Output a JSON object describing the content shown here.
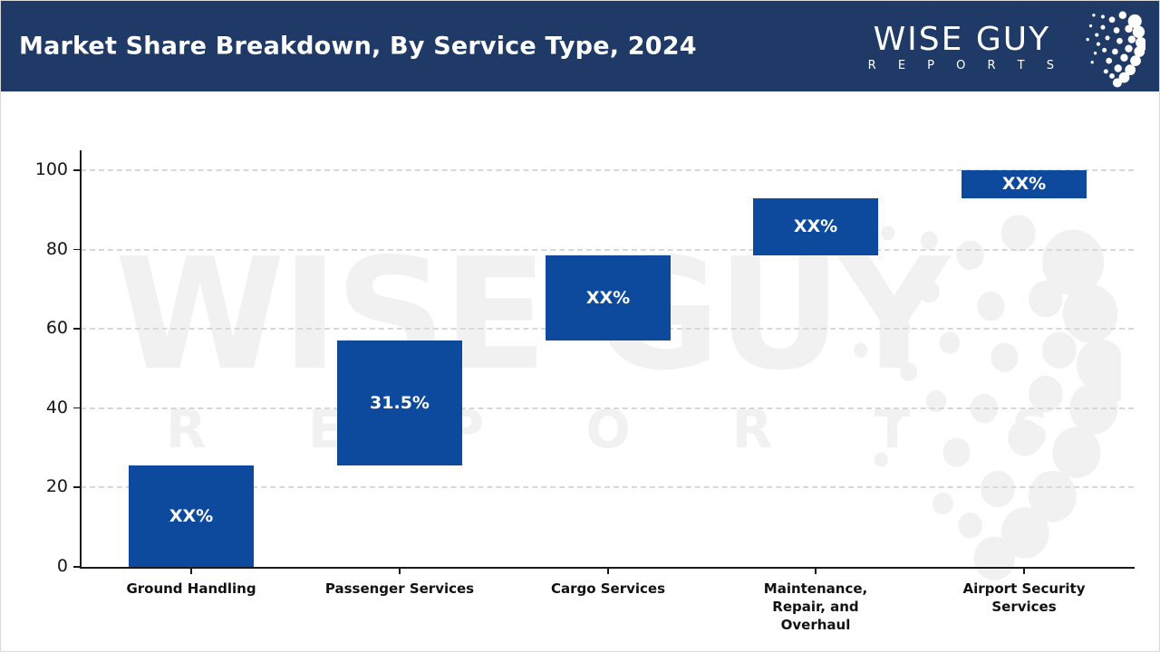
{
  "header": {
    "title": "Market Share Breakdown, By Service Type, 2024",
    "logo": {
      "wordmark": "WISE GUY",
      "subtext": "R E P O R T S"
    }
  },
  "watermark": {
    "wordmark": "WISE GUY",
    "subtext": "R E P O R T S"
  },
  "colors": {
    "header_bg": "#1f3a66",
    "bar": "#0d4a9d",
    "grid": "#d8d8d8",
    "axis": "#1a1a1a",
    "tick_text": "#161616",
    "bar_label_text": "#ffffff",
    "watermark": "#f1f1f1"
  },
  "chart_data": {
    "type": "bar",
    "subtype": "waterfall",
    "title": "Market Share Breakdown, By Service Type, 2024",
    "categories": [
      "Ground Handling",
      "Passenger Services",
      "Cargo Services",
      "Maintenance,\nRepair, and\nOverhaul",
      "Airport Security\nServices"
    ],
    "segments": [
      {
        "category": "Ground Handling",
        "start": 0,
        "end": 25.5,
        "value": 25.5,
        "label": "XX%"
      },
      {
        "category": "Passenger Services",
        "start": 25.5,
        "end": 57,
        "value": 31.5,
        "label": "31.5%"
      },
      {
        "category": "Cargo Services",
        "start": 57,
        "end": 78.5,
        "value": 21.5,
        "label": "XX%"
      },
      {
        "category": "Maintenance, Repair, and Overhaul",
        "start": 78.5,
        "end": 93,
        "value": 14.5,
        "label": "XX%"
      },
      {
        "category": "Airport Security Services",
        "start": 93,
        "end": 100,
        "value": 7,
        "label": "XX%"
      }
    ],
    "xlabel": "",
    "ylabel": "",
    "ylim": [
      0,
      105
    ],
    "yticks": [
      0,
      20,
      40,
      60,
      80,
      100
    ],
    "grid": "horizontal dashed",
    "legend": "none",
    "bar_color": "#0d4a9d",
    "bar_label_color": "#ffffff"
  }
}
